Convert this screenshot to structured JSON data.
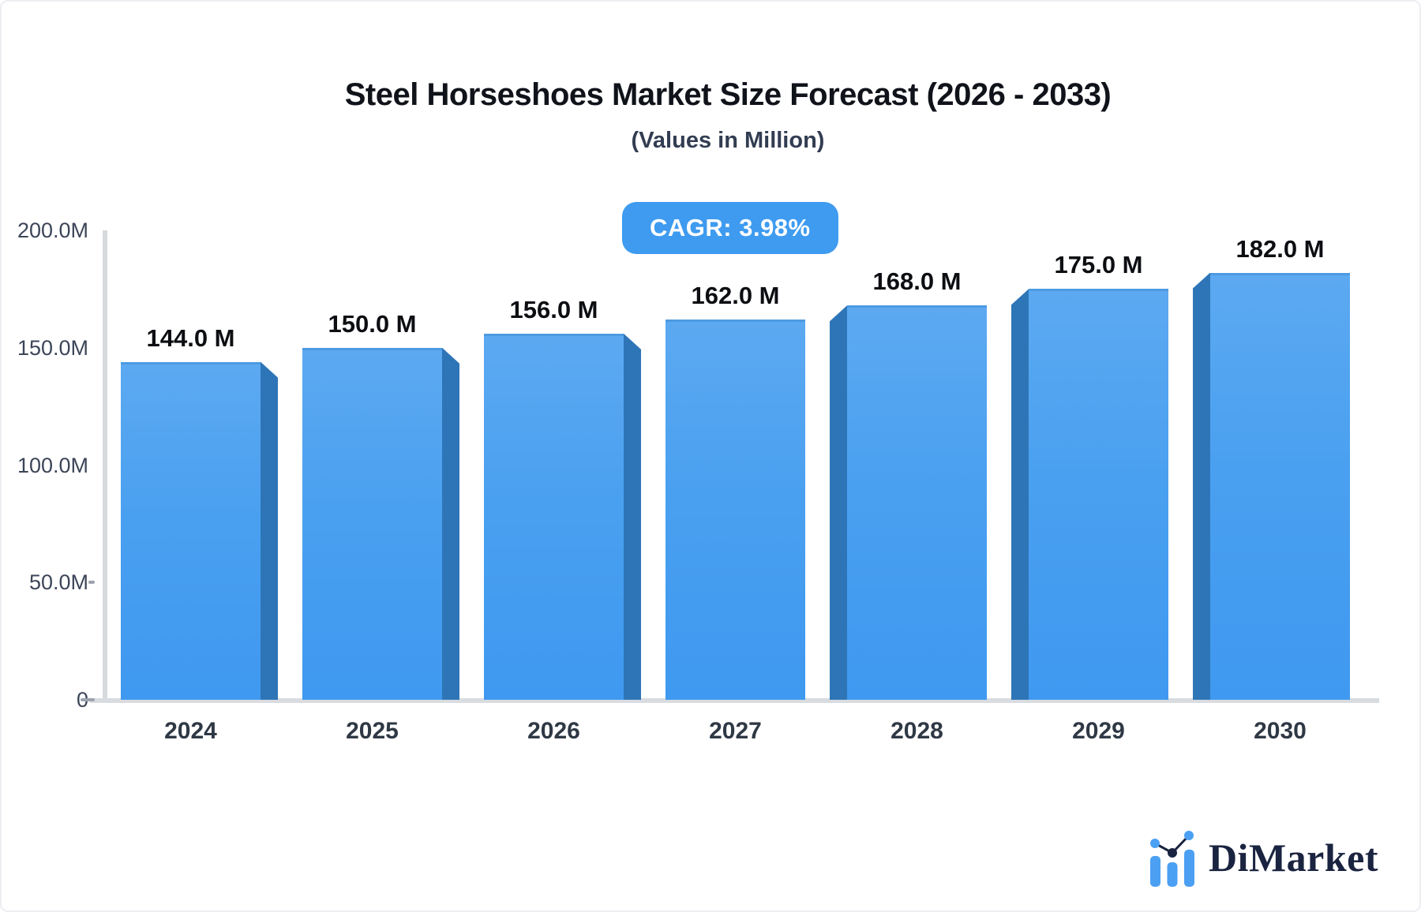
{
  "header": {
    "title": "Steel Horseshoes Market Size Forecast (2026 - 2033)",
    "subtitle": "(Values in Million)",
    "cagr_badge": "CAGR: 3.98%"
  },
  "brand": {
    "name": "DiMarket",
    "logo_icon": "mini-bar-chart-with-trend-dots-icon"
  },
  "chart_data": {
    "type": "bar",
    "title": "Steel Horseshoes Market Size Forecast (2026 - 2033)",
    "subtitle": "(Values in Million)",
    "unit": "Million",
    "categories": [
      "2024",
      "2025",
      "2026",
      "2027",
      "2028",
      "2029",
      "2030"
    ],
    "values": [
      144,
      150,
      156,
      162,
      168,
      175,
      182
    ],
    "value_labels": [
      "144.0 M",
      "150.0 M",
      "156.0 M",
      "162.0 M",
      "168.0 M",
      "175.0 M",
      "182.0 M"
    ],
    "y_ticks": [
      {
        "label": "200.0M",
        "value": 200
      },
      {
        "label": "150.0M",
        "value": 150
      },
      {
        "label": "100.0M",
        "value": 100
      },
      {
        "label": "50.0M",
        "value": 50
      },
      {
        "label": "0",
        "value": 0
      }
    ],
    "ylim": [
      0,
      200
    ],
    "xlabel": "",
    "ylabel": "",
    "grid": false,
    "legend": false,
    "annotations": [
      "CAGR: 3.98%"
    ],
    "colors": {
      "bar_face_top": "#5CA9F1",
      "bar_face_bottom": "#3F99F0",
      "bar_side": "#2E75B7",
      "bar_top_edge": "#4D9AE2",
      "badge_background": "#3E9BF0",
      "badge_text": "#FFFFFF",
      "axis_line": "#D6D9DE",
      "tick_text": "#3C4558",
      "logo_navy": "#1A2440",
      "logo_blue": "#4BA0F3"
    }
  }
}
